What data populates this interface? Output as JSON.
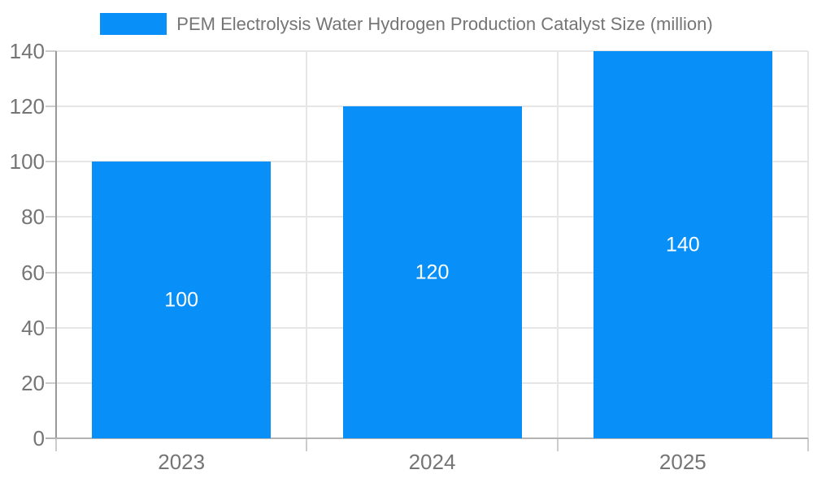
{
  "legend": {
    "label": "PEM Electrolysis Water Hydrogen Production Catalyst Size (million)",
    "swatch_color": "#0990f8"
  },
  "chart_data": {
    "type": "bar",
    "title": "",
    "categories": [
      "2023",
      "2024",
      "2025"
    ],
    "values": [
      100,
      120,
      140
    ],
    "value_labels": [
      "100",
      "120",
      "140"
    ],
    "series": [
      {
        "name": "PEM Electrolysis Water Hydrogen Production Catalyst Size (million)",
        "values": [
          100,
          120,
          140
        ]
      }
    ],
    "xlabel": "",
    "ylabel": "",
    "ylim": [
      0,
      140
    ],
    "yticks": [
      0,
      20,
      40,
      60,
      80,
      100,
      120,
      140
    ],
    "grid": true,
    "legend_position": "top-center",
    "bar_color": "#0990f8",
    "value_label_color": "#ffffff"
  },
  "colors": {
    "background": "#ffffff",
    "bar": "#0990f8",
    "text": "#757575",
    "gridline": "#e6e6e6",
    "y_axis": "#999999",
    "x_axis": "#b3b3b3",
    "tick": "#cccccc",
    "value_label": "#ffffff"
  }
}
